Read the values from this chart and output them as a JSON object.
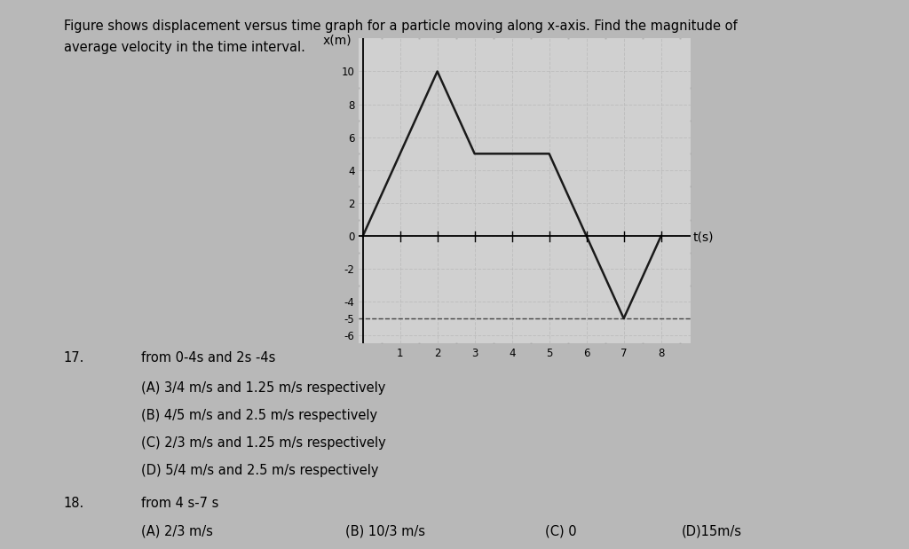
{
  "title_line1": "Figure shows displacement versus time graph for a particle moving along x-axis. Find the magnitude of",
  "title_line2": "average velocity in the time interval.",
  "xlabel": "t(s)",
  "ylabel": "x(m)",
  "x_points": [
    0,
    2,
    3,
    5,
    7,
    8
  ],
  "y_points": [
    0,
    10,
    5,
    5,
    -5,
    0
  ],
  "xlim": [
    -0.1,
    8.8
  ],
  "ylim": [
    -6.5,
    12
  ],
  "xticks": [
    1,
    2,
    3,
    4,
    5,
    6,
    7,
    8
  ],
  "yticks": [
    -6,
    -5,
    -4,
    -2,
    0,
    2,
    4,
    6,
    8,
    10
  ],
  "line_color": "#1a1a1a",
  "grid_color": "#bbbbbb",
  "bg_color": "#b8b8b8",
  "plot_bg_color": "#d0d0d0",
  "dashed_y": -5,
  "title_fontsize": 10.5,
  "axis_label_fontsize": 10,
  "tick_fontsize": 8.5,
  "q17_num": "17.",
  "q17_head": "from 0-4s and 2s -4s",
  "q17_a": "(A) 3/4 m/s and 1.25 m/s respectively",
  "q17_b": "(B) 4/5 m/s and 2.5 m/s respectively",
  "q17_c": "(C) 2/3 m/s and 1.25 m/s respectively",
  "q17_d": "(D) 5/4 m/s and 2.5 m/s respectively",
  "q18_num": "18.",
  "q18_head": "from 4 s-7 s",
  "q18_a": "(A) 2/3 m/s",
  "q18_b": "(B) 10/3 m/s",
  "q18_c": "(C) 0",
  "q18_d": "(D)15m/s"
}
